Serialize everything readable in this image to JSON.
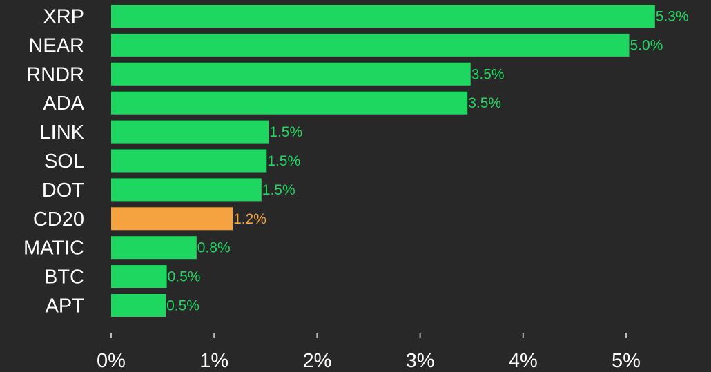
{
  "chart_data": {
    "type": "bar",
    "orientation": "horizontal",
    "categories": [
      "XRP",
      "NEAR",
      "RNDR",
      "ADA",
      "LINK",
      "SOL",
      "DOT",
      "CD20",
      "MATIC",
      "BTC",
      "APT"
    ],
    "values": [
      5.28,
      5.03,
      3.49,
      3.46,
      1.53,
      1.51,
      1.46,
      1.18,
      0.83,
      0.54,
      0.53
    ],
    "value_labels": [
      "5.3%",
      "5.0%",
      "3.5%",
      "3.5%",
      "1.5%",
      "1.5%",
      "1.5%",
      "1.2%",
      "0.8%",
      "0.5%",
      "0.5%"
    ],
    "highlight_category": "CD20",
    "x_ticks": [
      0,
      1,
      2,
      3,
      4,
      5
    ],
    "x_tick_labels": [
      "0%",
      "1%",
      "2%",
      "3%",
      "4%",
      "5%"
    ],
    "xlim": [
      0,
      5.5
    ],
    "grid": false,
    "legend": "none",
    "colors": {
      "background": "#282828",
      "bar": "#1ed760",
      "highlight": "#f5a340",
      "text": "#ffffff",
      "tick": "#bdbdbd"
    }
  }
}
